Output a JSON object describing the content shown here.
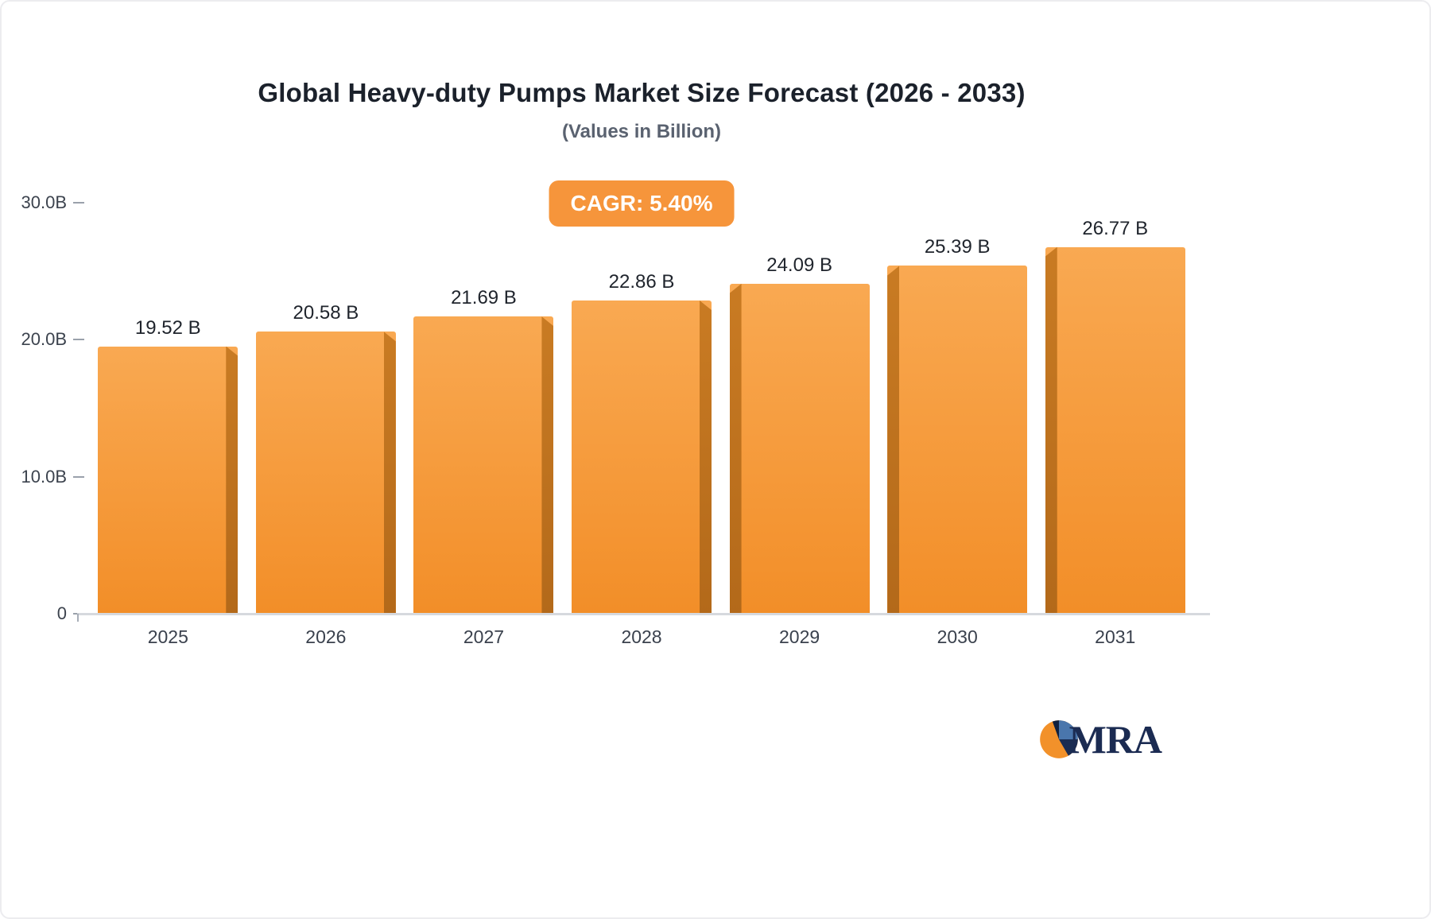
{
  "title": "Global Heavy-duty Pumps Market Size Forecast (2026 - 2033)",
  "subtitle": "(Values in Billion)",
  "badge": {
    "label": "CAGR: 5.40%"
  },
  "logo": {
    "text": "MRA"
  },
  "colors": {
    "accent_orange": "#F6953B",
    "bar_gradient_top": "#F9A952",
    "bar_gradient_bottom": "#F28E28",
    "bar_side_shadow": "#BC701E",
    "logo_navy": "#1B2B52",
    "logo_blue": "#4A76AC",
    "axis_line": "#D6D9DE",
    "text_dark": "#1F242C",
    "text_muted": "#5A6270"
  },
  "chart_data": {
    "type": "bar",
    "title": "Global Heavy-duty Pumps Market Size Forecast (2026 - 2033)",
    "subtitle": "(Values in Billion)",
    "annotation": "CAGR: 5.40%",
    "categories": [
      "2025",
      "2026",
      "2027",
      "2028",
      "2029",
      "2030",
      "2031"
    ],
    "values": [
      19.52,
      20.58,
      21.69,
      22.86,
      24.09,
      25.39,
      26.77
    ],
    "value_labels": [
      "19.52 B",
      "20.58 B",
      "21.69 B",
      "22.86 B",
      "24.09 B",
      "25.39 B",
      "26.77 B"
    ],
    "xlabel": "",
    "ylabel": "",
    "ylim": [
      0,
      30
    ],
    "yticks": [
      {
        "value": 30,
        "label": "30.0B"
      },
      {
        "value": 20,
        "label": "20.0B"
      },
      {
        "value": 10,
        "label": "10.0B"
      },
      {
        "value": 0,
        "label": "0"
      }
    ],
    "grid": false,
    "legend": false
  }
}
